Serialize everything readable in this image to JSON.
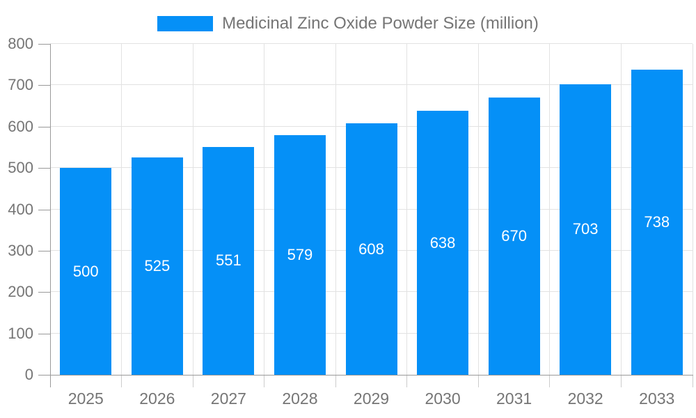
{
  "legend": {
    "label": "Medicinal Zinc Oxide Powder Size (million)"
  },
  "chart_data": {
    "type": "bar",
    "title": "Medicinal Zinc Oxide Powder Size (million)",
    "categories": [
      "2025",
      "2026",
      "2027",
      "2028",
      "2029",
      "2030",
      "2031",
      "2032",
      "2033"
    ],
    "values": [
      500,
      525,
      551,
      579,
      608,
      638,
      670,
      703,
      738
    ],
    "xlabel": "",
    "ylabel": "",
    "ylim": [
      0,
      800
    ],
    "yticks": [
      0,
      100,
      200,
      300,
      400,
      500,
      600,
      700,
      800
    ],
    "grid": true,
    "legend_position": "top",
    "bar_labels_visible": true,
    "bar_label_position": "center"
  },
  "colors": {
    "bar": "#0590f7",
    "axis": "#999999",
    "grid": "#e2e2e2",
    "minor_tick": "#cccccc",
    "text": "#757575",
    "bar_label": "#ffffff",
    "background": "#ffffff"
  }
}
